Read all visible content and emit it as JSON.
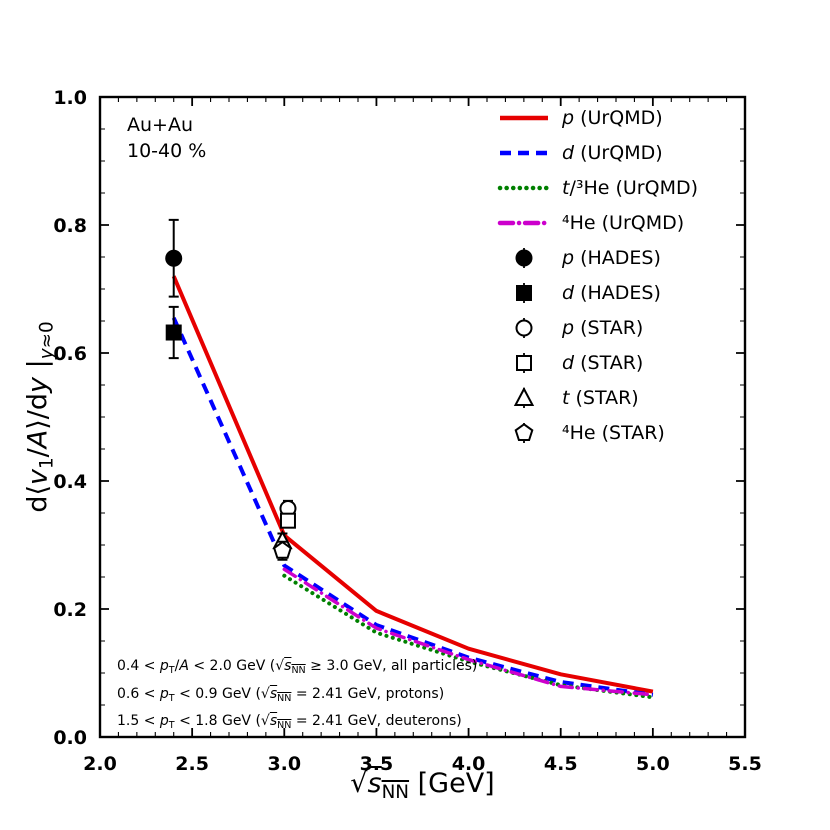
{
  "chart_data": {
    "type": "line",
    "title": "",
    "grid": false,
    "legend_position": "upper right",
    "xlim": [
      2.0,
      5.5
    ],
    "ylim": [
      0.0,
      1.0
    ],
    "xticks": [
      2.0,
      2.5,
      3.0,
      3.5,
      4.0,
      4.5,
      5.0,
      5.5
    ],
    "yticks": [
      0.0,
      0.2,
      0.4,
      0.6,
      0.8,
      1.0
    ],
    "x_minor_step": 0.1,
    "y_minor_step": 0.05,
    "xlabel": [
      {
        "t": "√"
      },
      {
        "t": "s",
        "i": true,
        "ov": true
      },
      {
        "t": "NN",
        "s": true,
        "ov": true
      },
      {
        "t": " [GeV]"
      }
    ],
    "ylabel": [
      {
        "t": "d⟨"
      },
      {
        "t": "v",
        "i": true
      },
      {
        "t": "1",
        "s": true
      },
      {
        "t": "/"
      },
      {
        "t": "A",
        "i": true
      },
      {
        "t": "⟩/d"
      },
      {
        "t": "y",
        "i": true
      },
      {
        "t": " |"
      },
      {
        "t": "y",
        "i": true,
        "s": true
      },
      {
        "t": "≈0",
        "s": true
      }
    ],
    "series": [
      {
        "id": "p-urqmd",
        "name": "p (UrQMD)",
        "style": "solid",
        "color": "#e60000",
        "width": 4,
        "x": [
          2.4,
          3.0,
          3.5,
          4.0,
          4.5,
          5.0
        ],
        "y": [
          0.72,
          0.315,
          0.197,
          0.138,
          0.098,
          0.071
        ]
      },
      {
        "id": "d-urqmd",
        "name": "d (UrQMD)",
        "style": "dashed",
        "color": "#0000ff",
        "width": 4,
        "x": [
          2.4,
          3.0,
          3.5,
          4.0,
          4.5,
          5.0
        ],
        "y": [
          0.655,
          0.268,
          0.175,
          0.124,
          0.086,
          0.066
        ]
      },
      {
        "id": "t-3he-urqmd",
        "name": "t/3He (UrQMD)",
        "style": "dotted",
        "color": "#008000",
        "width": 4,
        "x": [
          3.0,
          3.5,
          4.0,
          4.5,
          5.0
        ],
        "y": [
          0.252,
          0.163,
          0.118,
          0.081,
          0.062
        ]
      },
      {
        "id": "4he-urqmd",
        "name": "4He (UrQMD)",
        "style": "dashdot",
        "color": "#cc00cc",
        "width": 3.5,
        "x": [
          3.0,
          3.5,
          4.0,
          4.5,
          5.0
        ],
        "y": [
          0.262,
          0.17,
          0.121,
          0.079,
          0.066
        ]
      }
    ],
    "points": [
      {
        "id": "p-hades",
        "name": "p (HADES)",
        "marker": "circle",
        "filled": true,
        "x": 2.4,
        "y": 0.748,
        "yerr": 0.06
      },
      {
        "id": "d-hades",
        "name": "d (HADES)",
        "marker": "square",
        "filled": true,
        "x": 2.4,
        "y": 0.632,
        "yerr": 0.04
      },
      {
        "id": "p-star",
        "name": "p (STAR)",
        "marker": "circle",
        "filled": false,
        "x": 3.02,
        "y": 0.357,
        "yerr": 0.012
      },
      {
        "id": "d-star",
        "name": "d (STAR)",
        "marker": "square",
        "filled": false,
        "x": 3.02,
        "y": 0.338,
        "yerr": 0.01
      },
      {
        "id": "t-star",
        "name": "t (STAR)",
        "marker": "triangle",
        "filled": false,
        "x": 2.99,
        "y": 0.306,
        "yerr": 0.012
      },
      {
        "id": "4he-star",
        "name": "4He (STAR)",
        "marker": "pentagon",
        "filled": false,
        "x": 2.99,
        "y": 0.291,
        "yerr": 0.014
      }
    ],
    "legend": [
      {
        "id": "p-urqmd",
        "type": "line",
        "style": "solid",
        "color": "#e60000",
        "label": [
          {
            "t": "p",
            "i": true
          },
          {
            "t": " (UrQMD)"
          }
        ]
      },
      {
        "id": "d-urqmd",
        "type": "line",
        "style": "dashed",
        "color": "#0000ff",
        "label": [
          {
            "t": "d",
            "i": true
          },
          {
            "t": " (UrQMD)"
          }
        ]
      },
      {
        "id": "t-3he-urqmd",
        "type": "line",
        "style": "dotted",
        "color": "#008000",
        "label": [
          {
            "t": "t",
            "i": true
          },
          {
            "t": "/³He (UrQMD)"
          }
        ]
      },
      {
        "id": "4he-urqmd",
        "type": "line",
        "style": "dashdot",
        "color": "#cc00cc",
        "label": [
          {
            "t": "⁴He (UrQMD)"
          }
        ]
      },
      {
        "id": "p-hades",
        "type": "marker",
        "marker": "circle",
        "filled": true,
        "label": [
          {
            "t": "p",
            "i": true
          },
          {
            "t": " (HADES)"
          }
        ]
      },
      {
        "id": "d-hades",
        "type": "marker",
        "marker": "square",
        "filled": true,
        "label": [
          {
            "t": "d",
            "i": true
          },
          {
            "t": " (HADES)"
          }
        ]
      },
      {
        "id": "p-star",
        "type": "marker",
        "marker": "circle",
        "filled": false,
        "label": [
          {
            "t": "p",
            "i": true
          },
          {
            "t": " (STAR)"
          }
        ]
      },
      {
        "id": "d-star",
        "type": "marker",
        "marker": "square",
        "filled": false,
        "label": [
          {
            "t": "d",
            "i": true
          },
          {
            "t": " (STAR)"
          }
        ]
      },
      {
        "id": "t-star",
        "type": "marker",
        "marker": "triangle",
        "filled": false,
        "label": [
          {
            "t": "t",
            "i": true
          },
          {
            "t": " (STAR)"
          }
        ]
      },
      {
        "id": "4he-star",
        "type": "marker",
        "marker": "pentagon",
        "filled": false,
        "label": [
          {
            "t": "⁴He (STAR)"
          }
        ]
      }
    ],
    "annotations": {
      "system": [
        "Au+Au",
        "10-40 %"
      ],
      "cuts": [
        [
          {
            "t": "0.4 < "
          },
          {
            "t": "p",
            "i": true
          },
          {
            "t": "T",
            "s": true
          },
          {
            "t": "/"
          },
          {
            "t": "A",
            "i": true
          },
          {
            "t": " < 2.0 GeV ("
          },
          {
            "t": "√"
          },
          {
            "t": "s",
            "i": true,
            "ov": true
          },
          {
            "t": "NN",
            "s": true,
            "ov": true
          },
          {
            "t": " ≥ 3.0 GeV, all particles)"
          }
        ],
        [
          {
            "t": "0.6 < "
          },
          {
            "t": "p",
            "i": true
          },
          {
            "t": "T",
            "s": true
          },
          {
            "t": " < 0.9 GeV ("
          },
          {
            "t": "√"
          },
          {
            "t": "s",
            "i": true,
            "ov": true
          },
          {
            "t": "NN",
            "s": true,
            "ov": true
          },
          {
            "t": " = 2.41 GeV, protons)"
          }
        ],
        [
          {
            "t": "1.5 < "
          },
          {
            "t": "p",
            "i": true
          },
          {
            "t": "T",
            "s": true
          },
          {
            "t": " < 1.8 GeV ("
          },
          {
            "t": "√"
          },
          {
            "t": "s",
            "i": true,
            "ov": true
          },
          {
            "t": "NN",
            "s": true,
            "ov": true
          },
          {
            "t": " = 2.41 GeV, deuterons)"
          }
        ]
      ]
    }
  }
}
